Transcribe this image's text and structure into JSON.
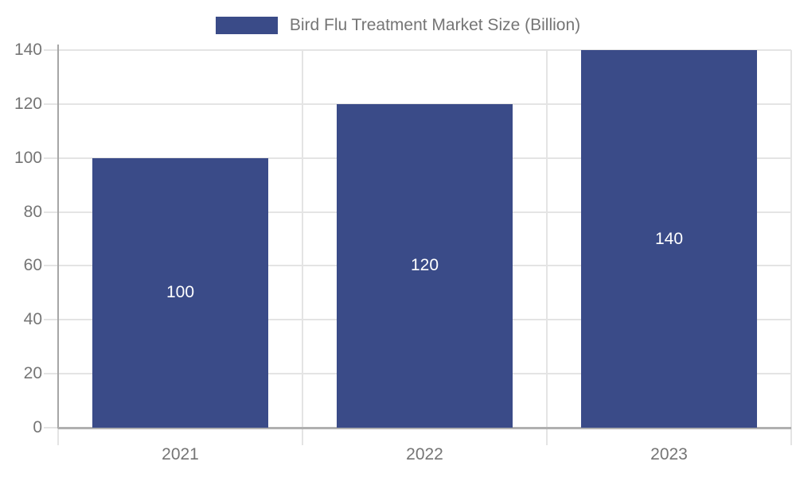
{
  "chart_data": {
    "type": "bar",
    "title": "Bird Flu Treatment Market Size (Billion)",
    "legend": "Bird Flu Treatment Market Size (Billion)",
    "legend_position": "top",
    "categories": [
      "2021",
      "2022",
      "2023"
    ],
    "values": [
      100,
      120,
      140
    ],
    "value_labels": [
      "100",
      "120",
      "140"
    ],
    "ylim": [
      0,
      140
    ],
    "yticks": [
      0,
      20,
      40,
      60,
      80,
      100,
      120,
      140
    ],
    "grid": true,
    "colors": {
      "bar": "#3A4B88",
      "bar_label": "#FFFFFF",
      "axis_text": "#757575",
      "grid_line": "#E4E4E4",
      "y_axis_line": "#A6A6A6",
      "x_axis_line": "#B0B0B0",
      "background": "#FFFFFF"
    }
  }
}
